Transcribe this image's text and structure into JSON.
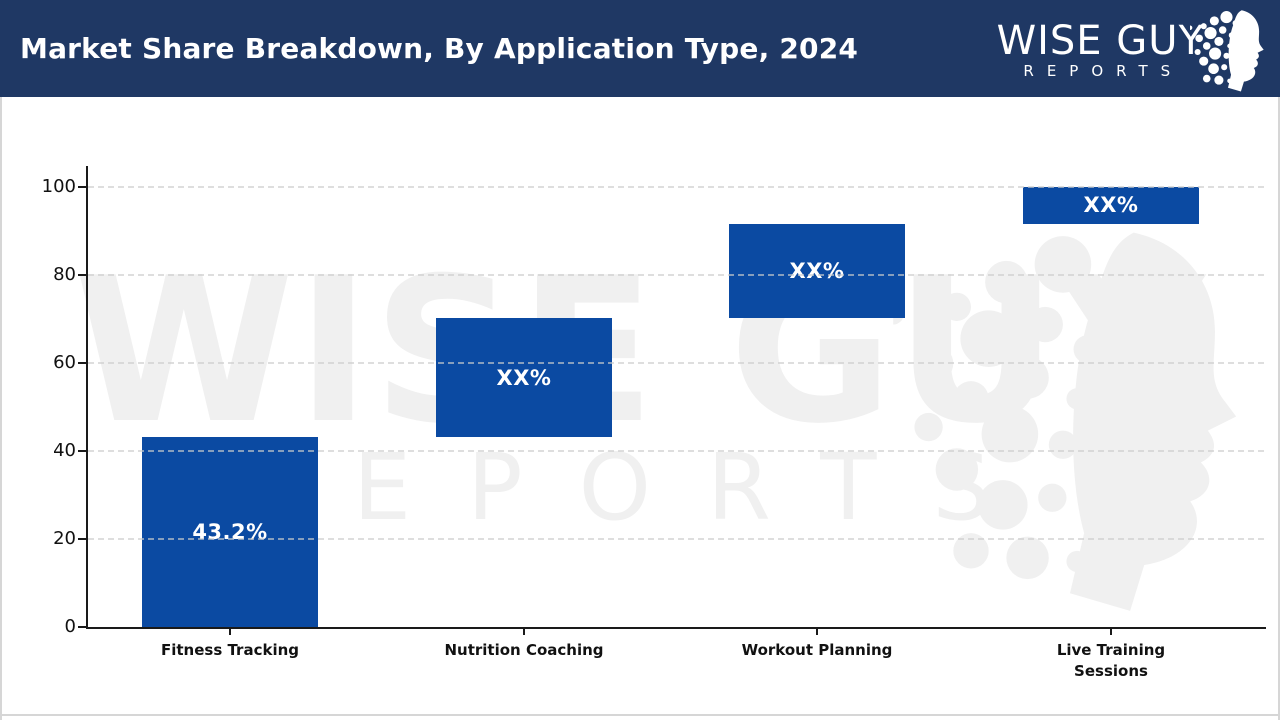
{
  "header": {
    "title": "Market Share Breakdown, By Application Type, 2024",
    "logo": {
      "line1": "WISE GUY",
      "line2": "REPORTS"
    }
  },
  "watermark": {
    "line1": "WISE GUY",
    "line2": "REPORTS"
  },
  "colors": {
    "banner": "#1f3864",
    "bar": "#0b4aa2",
    "gridline": "#d9d9d9",
    "watermark": "#f0f0f0"
  },
  "chart_data": {
    "type": "bar",
    "subtype": "waterfall-floating-bars",
    "title": "Market Share Breakdown, By Application Type, 2024",
    "xlabel": "",
    "ylabel": "",
    "categories": [
      "Fitness Tracking",
      "Nutrition Coaching",
      "Workout Planning",
      "Live Training Sessions"
    ],
    "segments": [
      {
        "category": "Fitness Tracking",
        "start": 0,
        "end": 43.2,
        "label": "43.2%"
      },
      {
        "category": "Nutrition Coaching",
        "start": 43.2,
        "end": 70.2,
        "label": "XX%"
      },
      {
        "category": "Workout Planning",
        "start": 70.2,
        "end": 91.7,
        "label": "XX%"
      },
      {
        "category": "Live Training Sessions",
        "start": 91.7,
        "end": 100,
        "label": "XX%"
      }
    ],
    "y_ticks": [
      0,
      20,
      40,
      60,
      80,
      100
    ],
    "ylim": [
      0,
      105
    ],
    "grid": "horizontal dashed",
    "legend": "none",
    "bar_color": "#0b4aa2",
    "value_label_position": "inside-center"
  }
}
